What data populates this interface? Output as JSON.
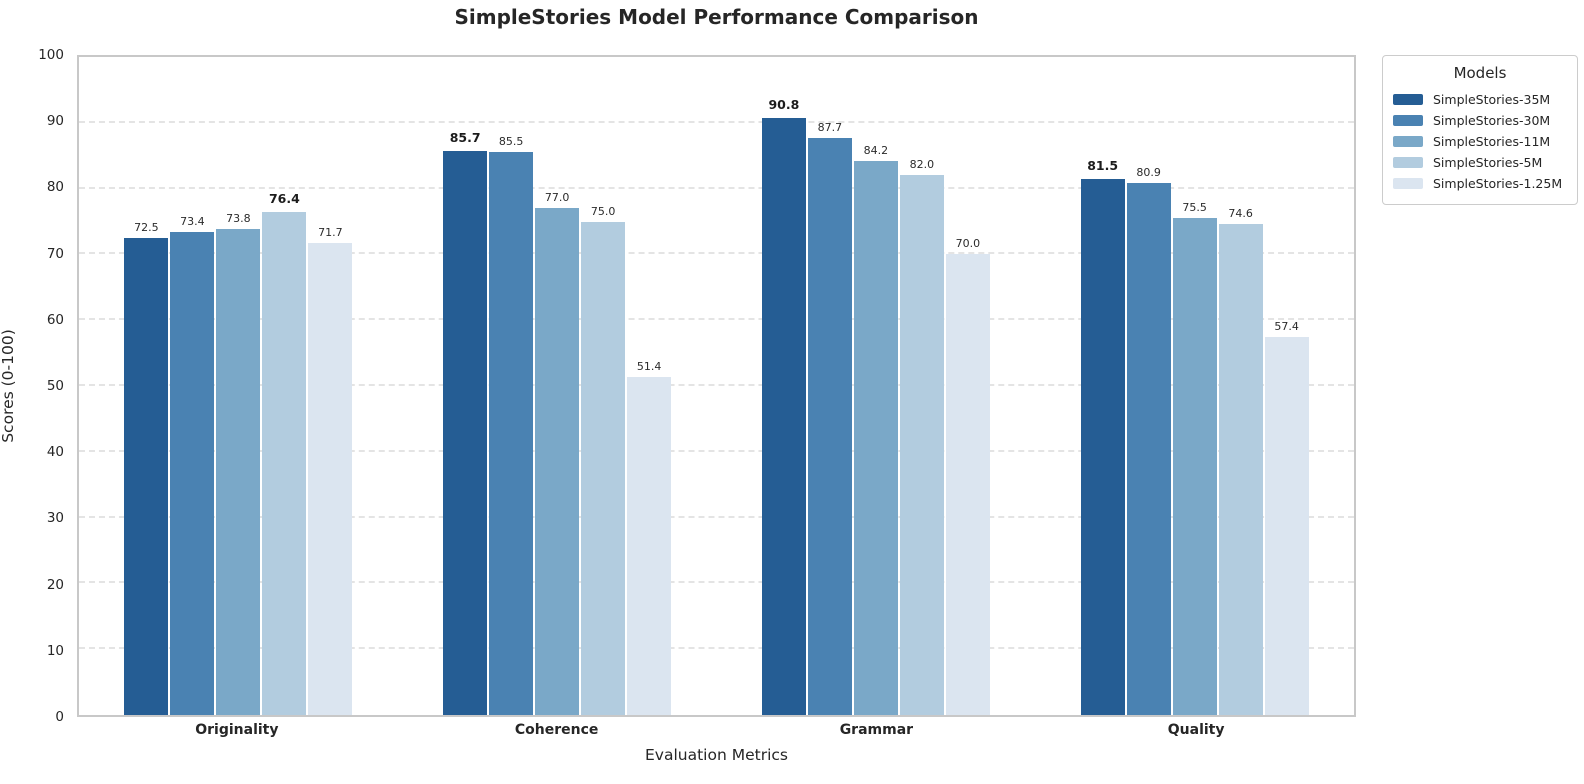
{
  "figure": {
    "title": "SimpleStories Model Performance Comparison",
    "x_axis_title": "Evaluation Metrics",
    "y_axis_title": "Scores (0-100)"
  },
  "legend": {
    "title": "Models"
  },
  "chart_data": {
    "type": "bar",
    "title": "SimpleStories Model Performance Comparison",
    "xlabel": "Evaluation Metrics",
    "ylabel": "Scores (0-100)",
    "categories": [
      "Originality",
      "Coherence",
      "Grammar",
      "Quality"
    ],
    "series": [
      {
        "name": "SimpleStories-35M",
        "color": "#255d94",
        "values": [
          72.5,
          85.7,
          90.8,
          81.5
        ]
      },
      {
        "name": "SimpleStories-30M",
        "color": "#4a82b2",
        "values": [
          73.4,
          85.5,
          87.7,
          80.9
        ]
      },
      {
        "name": "SimpleStories-11M",
        "color": "#7aa8c8",
        "values": [
          73.8,
          77.0,
          84.2,
          75.5
        ]
      },
      {
        "name": "SimpleStories-5M",
        "color": "#b2ccdf",
        "values": [
          76.4,
          75.0,
          82.0,
          74.6
        ]
      },
      {
        "name": "SimpleStories-1.25M",
        "color": "#dbe5f0",
        "values": [
          71.7,
          51.4,
          70.0,
          57.4
        ]
      }
    ],
    "ylim": [
      0,
      100
    ],
    "yticks": [
      0,
      10,
      20,
      30,
      40,
      50,
      60,
      70,
      80,
      90,
      100
    ],
    "grid": "horizontal-dashed",
    "legend_title": "Models",
    "legend_position": "upper-right-outside",
    "value_labels": "one-decimal",
    "value_label_bold_rule": "max-per-category"
  }
}
